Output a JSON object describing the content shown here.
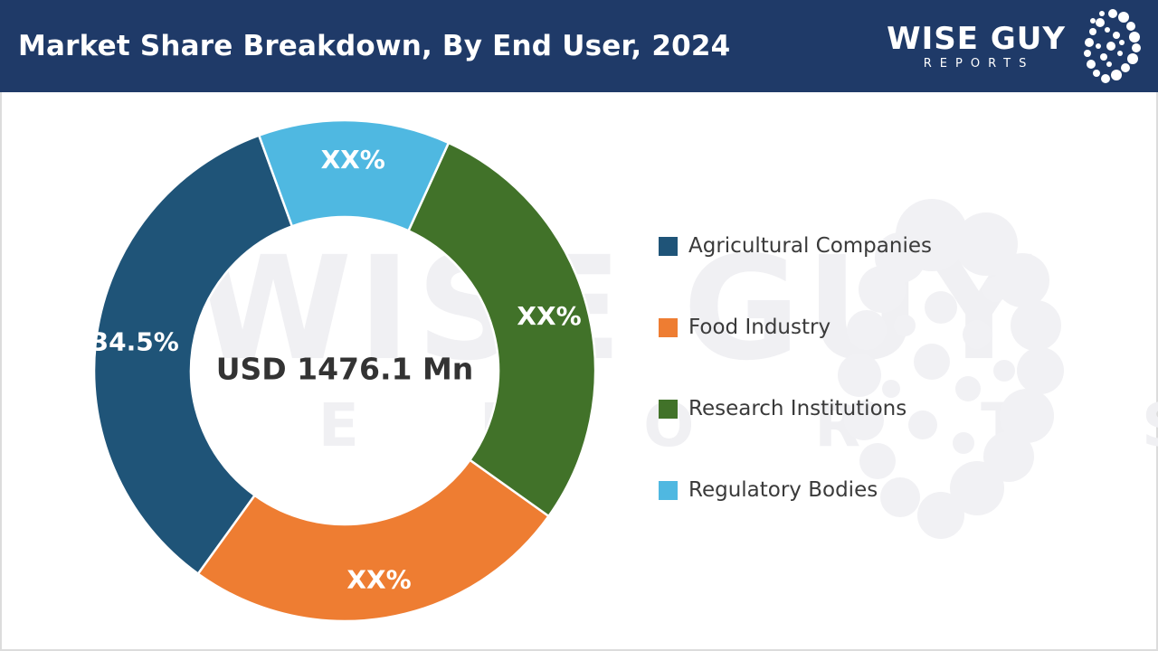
{
  "header": {
    "title": "Market Share Breakdown, By End User, 2024",
    "logo_line1": "WISE GUY",
    "logo_line2": "REPORTS",
    "bg_color": "#1F3A68"
  },
  "watermark": {
    "line1": "WISE GUY",
    "line2": "R E P O R T S"
  },
  "chart_data": {
    "type": "pie",
    "subtype": "donut",
    "title": "Market Share Breakdown, By End User, 2024",
    "center_label": "USD 1476.1 Mn",
    "legend_position": "right",
    "segments": [
      {
        "label": "Agricultural Companies",
        "value_label": "34.5%",
        "value_pct": 34.5,
        "color": "#1F5478",
        "start_angle": 110,
        "end_angle": 234.2
      },
      {
        "label": "Food Industry",
        "value_label": "XX%",
        "value_pct": 25.1,
        "color": "#EE7D32",
        "start_angle": 234.2,
        "end_angle": 324.5
      },
      {
        "label": "Research Institutions",
        "value_label": "XX%",
        "value_pct": 28.1,
        "color": "#417229",
        "start_angle": 324.5,
        "end_angle": 425.5
      },
      {
        "label": "Regulatory Bodies",
        "value_label": "XX%",
        "value_pct": 12.3,
        "color": "#4FB8E1",
        "start_angle": 65.5,
        "end_angle": 110
      }
    ]
  }
}
